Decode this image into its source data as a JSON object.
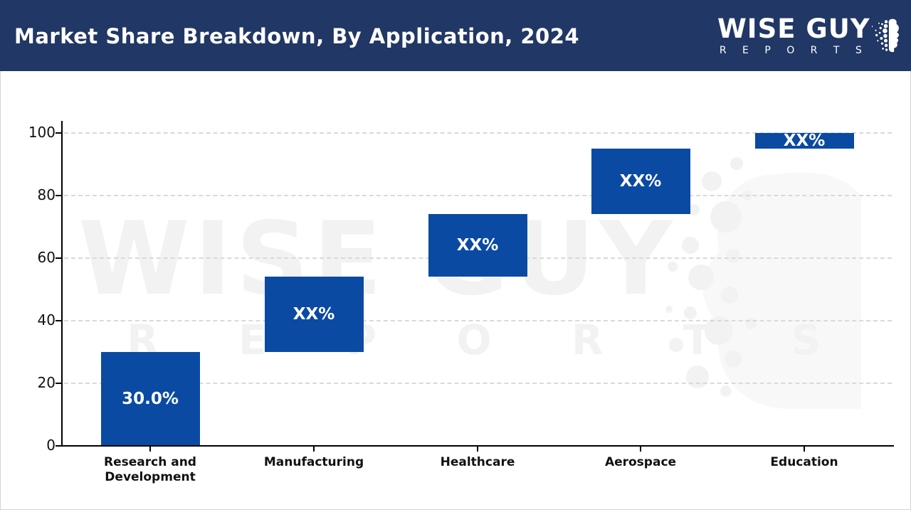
{
  "header": {
    "title": "Market Share Breakdown, By Application, 2024",
    "logo": {
      "line1": "WISE GUY",
      "line2": "R E P O R T S"
    }
  },
  "watermark": {
    "line1": "WISE GUY",
    "line2": "R E P O R T S"
  },
  "colors": {
    "header_bg": "#213765",
    "bar": "#0b4aa2",
    "grid": "#d9d9d9",
    "axis": "#000000",
    "watermark_text": "#f2f2f2",
    "title_text": "#ffffff",
    "tick_text": "#111111"
  },
  "chart_data": {
    "type": "bar",
    "subtype": "waterfall",
    "title": "Market Share Breakdown, By Application, 2024",
    "categories": [
      "Research and Development",
      "Manufacturing",
      "Healthcare",
      "Aerospace",
      "Education"
    ],
    "categories_display": [
      "Research and\nDevelopment",
      "Manufacturing",
      "Healthcare",
      "Aerospace",
      "Education"
    ],
    "series": [
      {
        "name": "Market Share (%)",
        "starts": [
          0,
          30,
          54,
          74,
          95
        ],
        "values": [
          30,
          24,
          20,
          21,
          5
        ]
      }
    ],
    "bar_labels": [
      "30.0%",
      "XX%",
      "XX%",
      "XX%",
      "XX%"
    ],
    "yticks": [
      0,
      20,
      40,
      60,
      80,
      100
    ],
    "ylim": [
      0,
      100
    ],
    "xlabel": "",
    "ylabel": "",
    "grid": "horizontal-dashed",
    "legend": "none"
  }
}
